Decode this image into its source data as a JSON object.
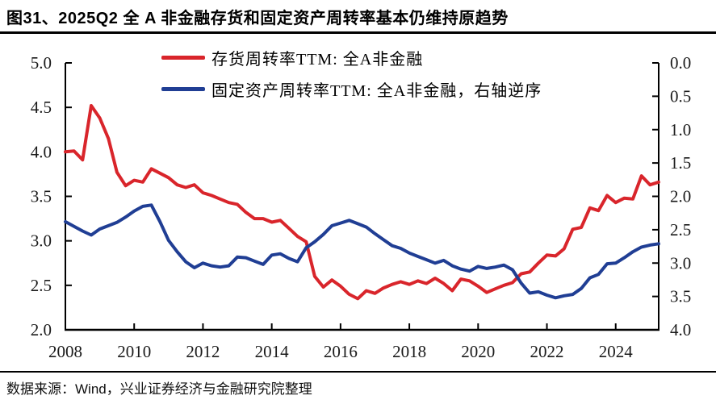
{
  "title": "图31、2025Q2 全 A 非金融存货和固定资产周转率基本仍维持原趋势",
  "source": "数据来源：Wind，兴业证券经济与金融研究院整理",
  "colors": {
    "inventory_line": "#D9252B",
    "fixed_asset_line": "#203E94",
    "axis": "#000000",
    "tick_label": "#1a1a1a"
  },
  "legend": [
    {
      "label": "存货周转率TTM: 全A非金融",
      "color": "#D9252B"
    },
    {
      "label": "固定资产周转率TTM: 全A非金融，右轴逆序",
      "color": "#203E94"
    }
  ],
  "chart_data": {
    "type": "line",
    "title": "2025Q2 全 A 非金融存货和固定资产周转率基本仍维持原趋势",
    "x_start": 2008.0,
    "x_step": 0.25,
    "x_min": 2008.0,
    "x_max": 2025.25,
    "x_tick_years": [
      2008,
      2010,
      2012,
      2014,
      2016,
      2018,
      2020,
      2022,
      2024
    ],
    "left_axis": {
      "min": 2.0,
      "max": 5.0,
      "reversed": false,
      "ticks": [
        "5.0",
        "4.5",
        "4.0",
        "3.5",
        "3.0",
        "2.5",
        "2.0"
      ]
    },
    "right_axis": {
      "min": 0.0,
      "max": 4.0,
      "reversed": true,
      "ticks": [
        "0.0",
        "0.5",
        "1.0",
        "1.5",
        "2.0",
        "2.5",
        "3.0",
        "3.5",
        "4.0"
      ]
    },
    "grid": false,
    "legend_position": "top-left-inside",
    "series": [
      {
        "name": "存货周转率TTM: 全A非金融",
        "axis": "left",
        "color": "#D9252B",
        "values": [
          4.0,
          4.01,
          3.91,
          4.52,
          4.38,
          4.15,
          3.77,
          3.62,
          3.68,
          3.66,
          3.81,
          3.76,
          3.71,
          3.63,
          3.6,
          3.63,
          3.54,
          3.51,
          3.47,
          3.43,
          3.41,
          3.32,
          3.25,
          3.25,
          3.21,
          3.23,
          3.14,
          3.05,
          2.99,
          2.6,
          2.48,
          2.56,
          2.49,
          2.4,
          2.35,
          2.44,
          2.41,
          2.47,
          2.51,
          2.54,
          2.51,
          2.55,
          2.52,
          2.58,
          2.52,
          2.44,
          2.57,
          2.55,
          2.49,
          2.42,
          2.46,
          2.5,
          2.53,
          2.63,
          2.65,
          2.75,
          2.84,
          2.83,
          2.91,
          3.13,
          3.15,
          3.37,
          3.34,
          3.51,
          3.43,
          3.48,
          3.47,
          3.73,
          3.63,
          3.66
        ]
      },
      {
        "name": "固定资产周转率TTM: 全A非金融，右轴逆序",
        "axis": "right",
        "color": "#203E94",
        "values": [
          2.38,
          2.45,
          2.52,
          2.58,
          2.49,
          2.44,
          2.39,
          2.31,
          2.22,
          2.15,
          2.13,
          2.38,
          2.66,
          2.83,
          2.98,
          3.07,
          3.0,
          3.04,
          3.06,
          3.04,
          2.91,
          2.92,
          2.97,
          3.02,
          2.88,
          2.86,
          2.93,
          2.98,
          2.77,
          2.68,
          2.57,
          2.44,
          2.4,
          2.36,
          2.41,
          2.46,
          2.56,
          2.65,
          2.74,
          2.78,
          2.85,
          2.9,
          2.95,
          3.0,
          2.96,
          3.04,
          3.09,
          3.12,
          3.05,
          3.08,
          3.06,
          3.03,
          3.1,
          3.3,
          3.45,
          3.43,
          3.48,
          3.52,
          3.49,
          3.47,
          3.38,
          3.22,
          3.17,
          3.01,
          3.0,
          2.92,
          2.83,
          2.76,
          2.73,
          2.71
        ]
      }
    ]
  }
}
